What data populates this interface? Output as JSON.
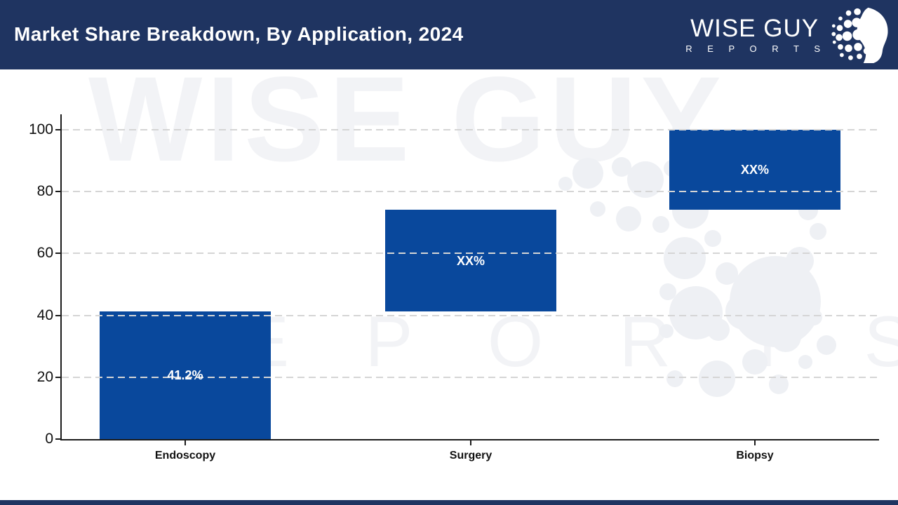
{
  "header": {
    "title": "Market Share Breakdown, By Application, 2024",
    "brand": {
      "line1": "WISE GUY",
      "line2": "R E P O R T S"
    }
  },
  "watermark": {
    "line1": "WISE GUY",
    "line2": "R E P O R T S"
  },
  "chart_data": {
    "type": "bar",
    "subtype": "floating-waterfall",
    "title": "Market Share Breakdown, By Application, 2024",
    "categories": [
      "Endoscopy",
      "Surgery",
      "Biopsy"
    ],
    "segments": [
      {
        "category": "Endoscopy",
        "start": 0,
        "end": 41.2,
        "label": "41.2%"
      },
      {
        "category": "Surgery",
        "start": 41.2,
        "end": 74.2,
        "label": "XX%"
      },
      {
        "category": "Biopsy",
        "start": 74.2,
        "end": 100,
        "label": "XX%"
      }
    ],
    "values_pct": [
      41.2,
      33.0,
      25.8
    ],
    "xlabel": "",
    "ylabel": "",
    "ylim": [
      0,
      105
    ],
    "yticks": [
      0,
      20,
      40,
      60,
      80,
      100
    ],
    "grid": {
      "horizontal": true,
      "style": "dashed"
    },
    "legend": null,
    "bar_color": "#09489c",
    "value_label_color": "#ffffff"
  },
  "colors": {
    "header_bg": "#1f3461",
    "footer_bg": "#1f3461",
    "bar": "#09489c",
    "axis": "#1c1c1c",
    "grid": "#d5d5d5",
    "watermark": "#f2f3f6"
  }
}
